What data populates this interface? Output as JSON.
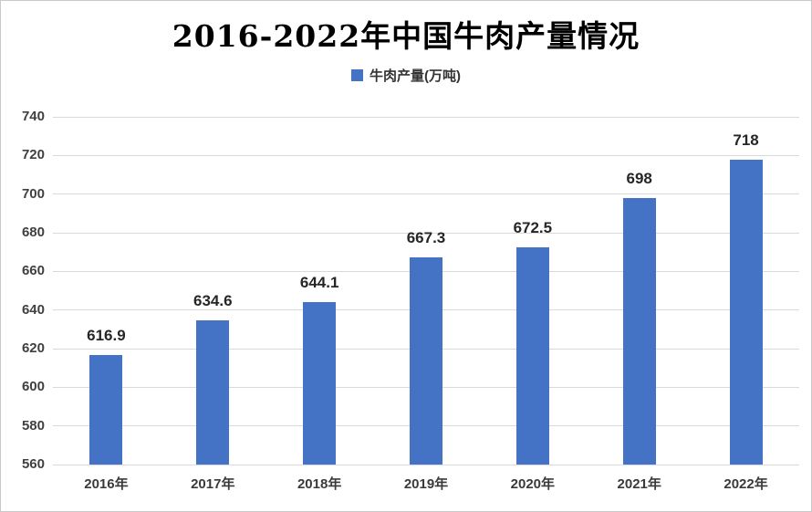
{
  "title": "2016-2022年中国牛肉产量情况",
  "legend": {
    "label": "牛肉产量(万吨)"
  },
  "colors": {
    "bar": "#4472C4",
    "gridline": "#d9d9d9",
    "title_text": "#000000",
    "axis_text": "#404040",
    "data_label_text": "#262626"
  },
  "chart_data": {
    "type": "bar",
    "title": "2016-2022年中国牛肉产量情况",
    "series_name": "牛肉产量(万吨)",
    "categories": [
      "2016年",
      "2017年",
      "2018年",
      "2019年",
      "2020年",
      "2021年",
      "2022年"
    ],
    "values": [
      616.9,
      634.6,
      644.1,
      667.3,
      672.5,
      698,
      718
    ],
    "data_labels": [
      "616.9",
      "634.6",
      "644.1",
      "667.3",
      "672.5",
      "698",
      "718"
    ],
    "xlabel": "",
    "ylabel": "",
    "ylim": [
      560,
      740
    ],
    "ytick_step": 20,
    "ytick_labels": [
      "560",
      "580",
      "600",
      "620",
      "640",
      "660",
      "680",
      "700",
      "720",
      "740"
    ],
    "grid": true,
    "legend_position": "top",
    "bar_color": "#4472C4"
  }
}
